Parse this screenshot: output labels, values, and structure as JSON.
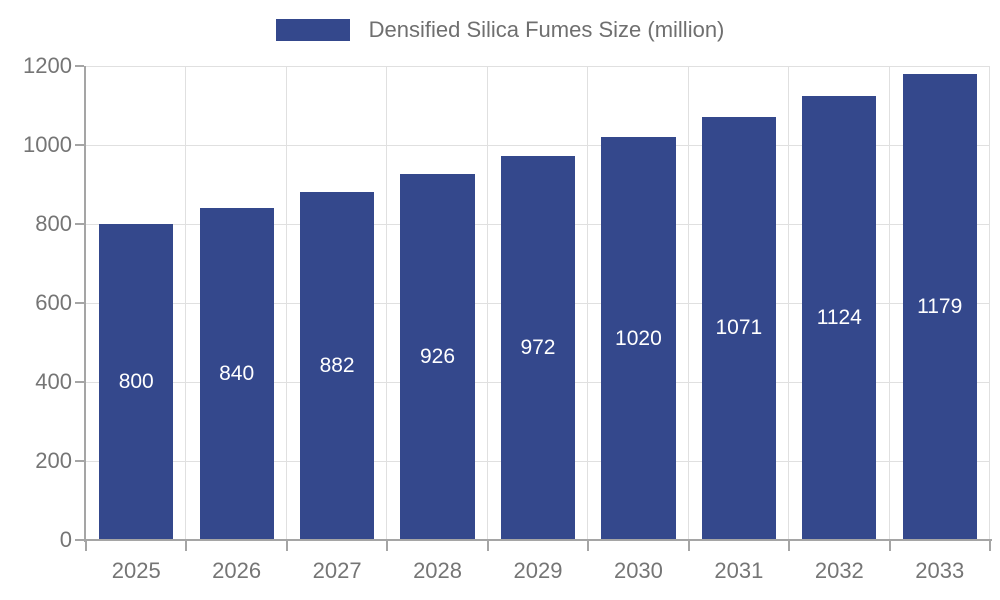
{
  "legend": {
    "label": "Densified Silica Fumes Size (million)"
  },
  "chart_data": {
    "type": "bar",
    "title": "Densified Silica Fumes Size (million)",
    "series_name": "Densified Silica Fumes Size (million)",
    "categories": [
      "2025",
      "2026",
      "2027",
      "2028",
      "2029",
      "2030",
      "2031",
      "2032",
      "2033"
    ],
    "values": [
      800,
      840,
      882,
      926,
      972,
      1020,
      1071,
      1124,
      1179
    ],
    "xlabel": "",
    "ylabel": "",
    "ylim": [
      0,
      1200
    ],
    "yticks": [
      0,
      200,
      400,
      600,
      800,
      1000,
      1200
    ],
    "grid": true,
    "legend_position": "top",
    "value_labels": "inside-center",
    "colors": {
      "bar": "#34488C",
      "value_label": "#ffffff",
      "grid": "#e0e0e0",
      "axis": "#a5a5a5",
      "tick_label": "#757575",
      "legend_text": "#6f6f6f",
      "background": "#ffffff"
    }
  }
}
